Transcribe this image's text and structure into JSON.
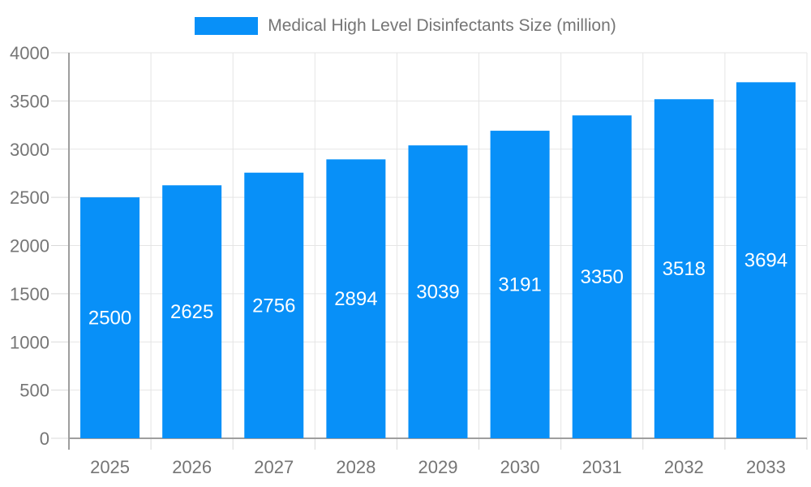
{
  "legend": {
    "label": "Medical High Level Disinfectants Size (million)",
    "swatch_color": "#0890f8"
  },
  "chart_data": {
    "type": "bar",
    "title": "Medical High Level Disinfectants Size (million)",
    "categories": [
      "2025",
      "2026",
      "2027",
      "2028",
      "2029",
      "2030",
      "2031",
      "2032",
      "2033"
    ],
    "values": [
      2500,
      2625,
      2756,
      2894,
      3039,
      3191,
      3350,
      3518,
      3694
    ],
    "series": [
      {
        "name": "Medical High Level Disinfectants Size (million)",
        "values": [
          2500,
          2625,
          2756,
          2894,
          3039,
          3191,
          3350,
          3518,
          3694
        ]
      }
    ],
    "xlabel": "",
    "ylabel": "",
    "ylim": [
      0,
      4000
    ],
    "yticks": [
      0,
      500,
      1000,
      1500,
      2000,
      2500,
      3000,
      3500,
      4000
    ],
    "grid": true,
    "legend_position": "top",
    "bar_color": "#0890f8",
    "bar_label_color": "#ffffff",
    "axis_color": "#9e9e9e",
    "grid_color": "#e5e5e5",
    "tick_color": "#d9d9d9",
    "text_color": "#757575",
    "background_color": "#ffffff"
  }
}
